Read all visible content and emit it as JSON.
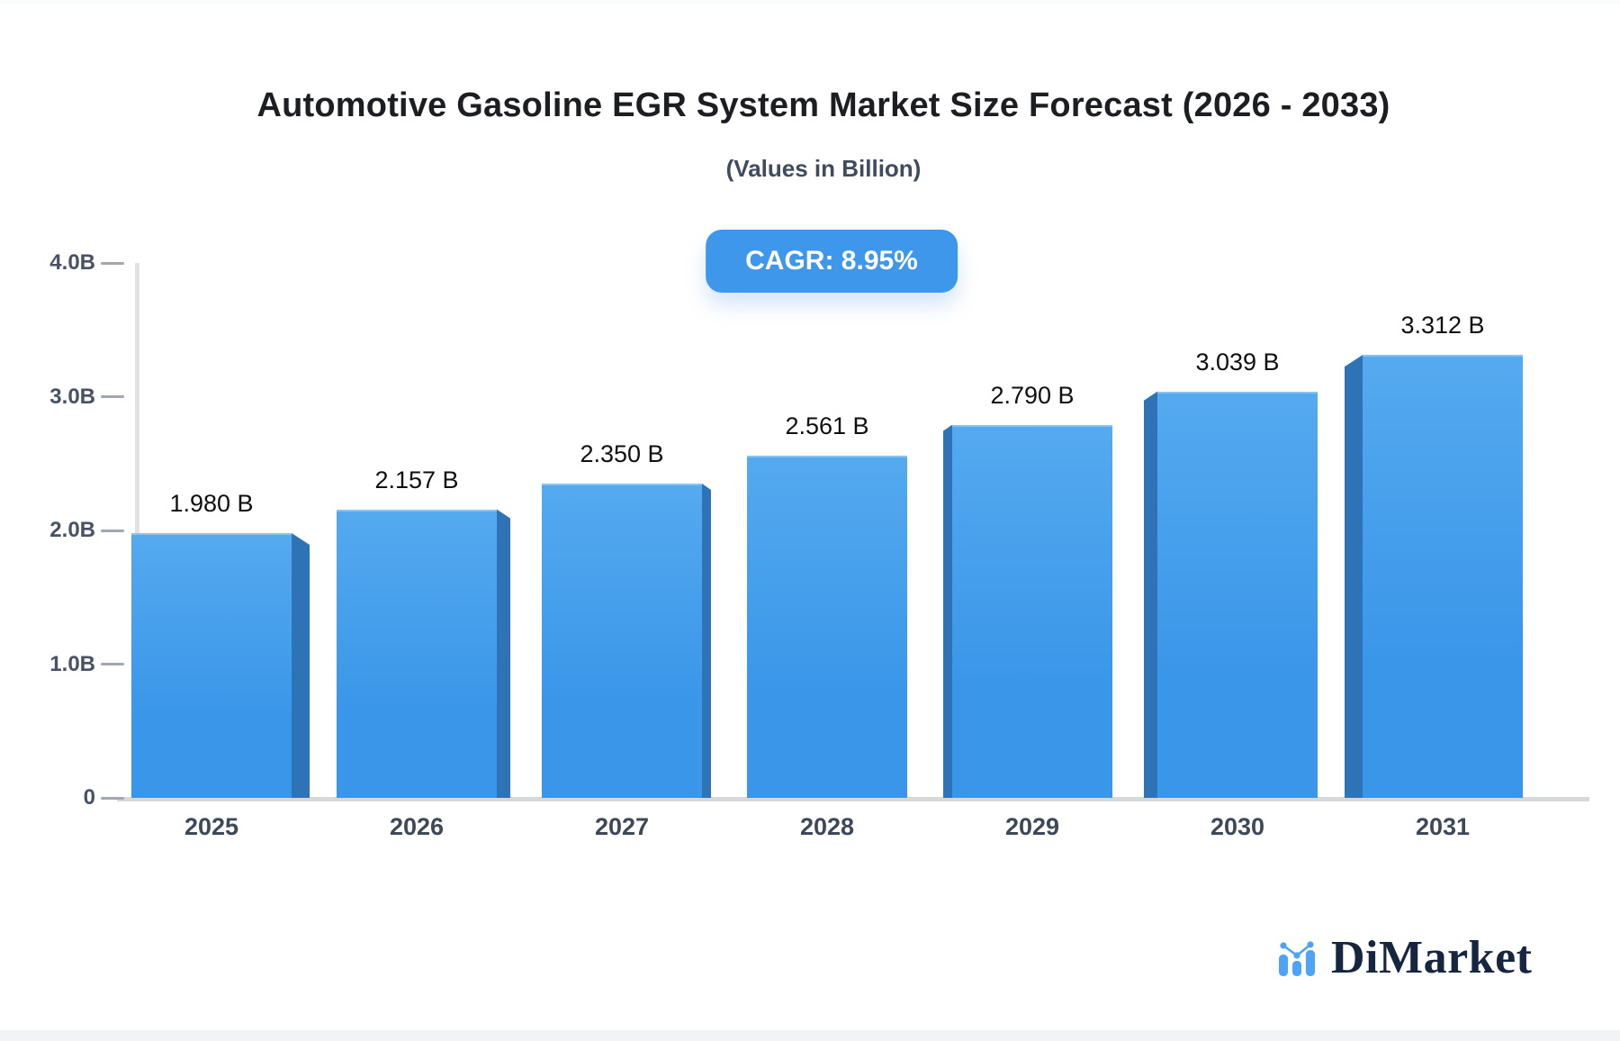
{
  "header": {
    "title": "Automotive Gasoline EGR System Market Size Forecast (2026 - 2033)",
    "subtitle": "(Values in Billion)"
  },
  "badge": {
    "label": "CAGR: 8.95%",
    "background_color": "#3e97ea",
    "text_color": "#ffffff"
  },
  "chart_data": {
    "type": "bar",
    "title": "Automotive Gasoline EGR System Market Size Forecast (2026 - 2033)",
    "subtitle": "(Values in Billion)",
    "cagr_label": "CAGR: 8.95%",
    "categories": [
      "2025",
      "2026",
      "2027",
      "2028",
      "2029",
      "2030",
      "2031"
    ],
    "values": [
      1.98,
      2.157,
      2.35,
      2.561,
      2.79,
      3.039,
      3.312
    ],
    "value_labels": [
      "1.980 B",
      "2.157 B",
      "2.350 B",
      "2.561 B",
      "2.790 B",
      "3.039 B",
      "3.312 B"
    ],
    "y_ticks": [
      {
        "label": "4.0B",
        "value": 4.0
      },
      {
        "label": "3.0B",
        "value": 3.0
      },
      {
        "label": "2.0B",
        "value": 2.0
      },
      {
        "label": "1.0B",
        "value": 1.0
      },
      {
        "label": "0",
        "value": 0.0
      }
    ],
    "ylim": [
      0,
      4.0
    ],
    "xlabel": "",
    "ylabel": "",
    "grid": "off",
    "legend": "none",
    "style": "3d-perspective-bars",
    "bar_color_top": "#55aaef",
    "bar_color_bottom": "#3a96e9",
    "bar_side_color": "#2d73b5",
    "axis_line_color": "#dfe1e4",
    "baseline_color": "#d6d8db"
  },
  "logo": {
    "text": "DiMarket",
    "icon": "bar-chart-trend-icon",
    "icon_color": "#4da3f7",
    "text_color": "#162640"
  }
}
